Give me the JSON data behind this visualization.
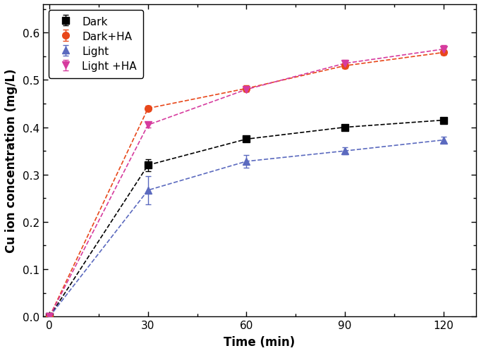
{
  "series": [
    {
      "label": "Dark",
      "color": "#000000",
      "marker": "s",
      "x": [
        0,
        30,
        60,
        90,
        120
      ],
      "y": [
        0,
        0.32,
        0.375,
        0.4,
        0.415
      ],
      "yerr": [
        0,
        0.013,
        0.005,
        0.005,
        0.005
      ],
      "linestyle": "--"
    },
    {
      "label": "Dark+HA",
      "color": "#e8471a",
      "marker": "o",
      "x": [
        0,
        30,
        60,
        90,
        120
      ],
      "y": [
        0,
        0.44,
        0.482,
        0.53,
        0.558
      ],
      "yerr": [
        0,
        0.005,
        0.006,
        0.005,
        0.005
      ],
      "linestyle": "--"
    },
    {
      "label": "Light",
      "color": "#5b6abf",
      "marker": "^",
      "x": [
        0,
        30,
        60,
        90,
        120
      ],
      "y": [
        0,
        0.267,
        0.328,
        0.35,
        0.373
      ],
      "yerr": [
        0,
        0.03,
        0.013,
        0.007,
        0.007
      ],
      "linestyle": "--"
    },
    {
      "label": "Light +HA",
      "color": "#d63b9e",
      "marker": "v",
      "x": [
        0,
        30,
        60,
        90,
        120
      ],
      "y": [
        0,
        0.405,
        0.48,
        0.535,
        0.565
      ],
      "yerr": [
        0,
        0.005,
        0.005,
        0.008,
        0.009
      ],
      "linestyle": "--"
    }
  ],
  "xlabel": "Time (min)",
  "ylabel": "Cu ion concentration (mg/L)",
  "xlim": [
    -2,
    130
  ],
  "ylim": [
    0,
    0.66
  ],
  "yticks": [
    0.0,
    0.1,
    0.2,
    0.3,
    0.4,
    0.5,
    0.6
  ],
  "xticks": [
    0,
    30,
    60,
    90,
    120
  ],
  "figsize": [
    6.82,
    5.02
  ],
  "dpi": 100
}
